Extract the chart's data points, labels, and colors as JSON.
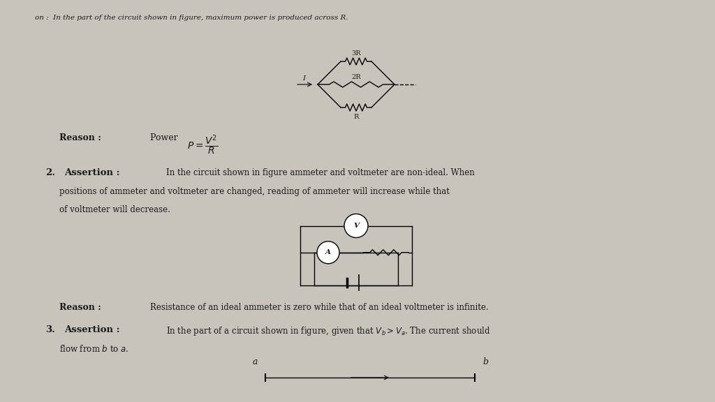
{
  "background_color": "#c8c4bc",
  "text_color": "#1a1a1a",
  "figsize": [
    10.24,
    5.76
  ],
  "dpi": 100,
  "title_line": "In the part of the circuit shown in figure, maximum power is produced across R.",
  "reason2_body": "Resistance of an ideal ammeter is zero while that of an ideal voltmeter is infinite.",
  "assertion3_body": "In the part of a circuit shown in figure, given that $V_b > V_a$. The current should"
}
